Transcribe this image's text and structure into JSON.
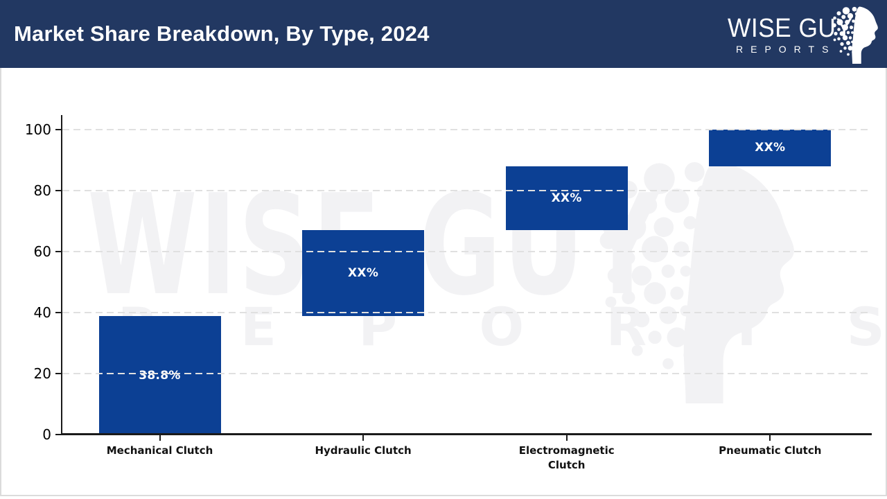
{
  "header": {
    "title": "Market Share Breakdown, By Type, 2024",
    "logo": {
      "line1": "WISE GUY",
      "line2": "REPORTS"
    }
  },
  "watermark": {
    "line1": "WISE GUY",
    "line2": "R E P O R T S"
  },
  "colors": {
    "header_bg": "#223862",
    "bar": "#0c4094",
    "grid": "#e0e0e0",
    "axis": "#1a1a1a",
    "bar_label": "#ffffff",
    "watermark": "#f2f2f4",
    "frame_border": "#dbdbdb"
  },
  "chart_data": {
    "type": "bar",
    "variant": "stacked-waterfall",
    "title": "Market Share Breakdown, By Type, 2024",
    "categories": [
      "Mechanical Clutch",
      "Hydraulic Clutch",
      "Electromagnetic Clutch",
      "Pneumatic Clutch"
    ],
    "segments": [
      {
        "category": "Mechanical Clutch",
        "lines": [
          "Mechanical Clutch"
        ],
        "start": 0,
        "end": 38.8,
        "value_label": "38.8%"
      },
      {
        "category": "Hydraulic Clutch",
        "lines": [
          "Hydraulic Clutch"
        ],
        "start": 38.8,
        "end": 67,
        "value_label": "XX%"
      },
      {
        "category": "Electromagnetic Clutch",
        "lines": [
          "Electromagnetic",
          "Clutch"
        ],
        "start": 67,
        "end": 88,
        "value_label": "XX%"
      },
      {
        "category": "Pneumatic Clutch",
        "lines": [
          "Pneumatic Clutch"
        ],
        "start": 88,
        "end": 100,
        "value_label": "XX%"
      }
    ],
    "yticks": [
      0,
      20,
      40,
      60,
      80,
      100
    ],
    "ylim": [
      0,
      104
    ],
    "xlabel": "",
    "ylabel": "",
    "grid": "horizontal-dashed",
    "legend": "none"
  }
}
